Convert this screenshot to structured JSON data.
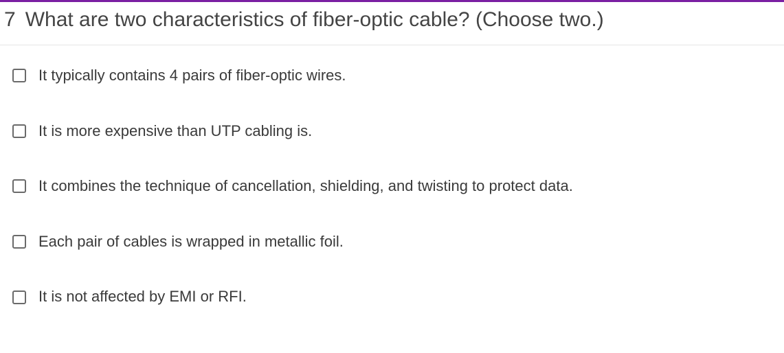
{
  "question": {
    "number": "7",
    "text": "What are two characteristics of fiber-optic cable? (Choose two.)"
  },
  "options": [
    {
      "label": "It typically contains 4 pairs of fiber-optic wires.",
      "checked": false
    },
    {
      "label": "It is more expensive than UTP cabling is.",
      "checked": false
    },
    {
      "label": "It combines the technique of cancellation, shielding, and twisting to protect data.",
      "checked": false
    },
    {
      "label": "Each pair of cables is wrapped in metallic foil.",
      "checked": false
    },
    {
      "label": "It is not affected by EMI or RFI.",
      "checked": false
    }
  ],
  "colors": {
    "accent_top_border": "#7a1fa2",
    "text": "#3a3a3a",
    "header_text": "#444444",
    "divider": "#e5e5e5",
    "checkbox_border": "#6a6a6a",
    "background": "#ffffff"
  }
}
